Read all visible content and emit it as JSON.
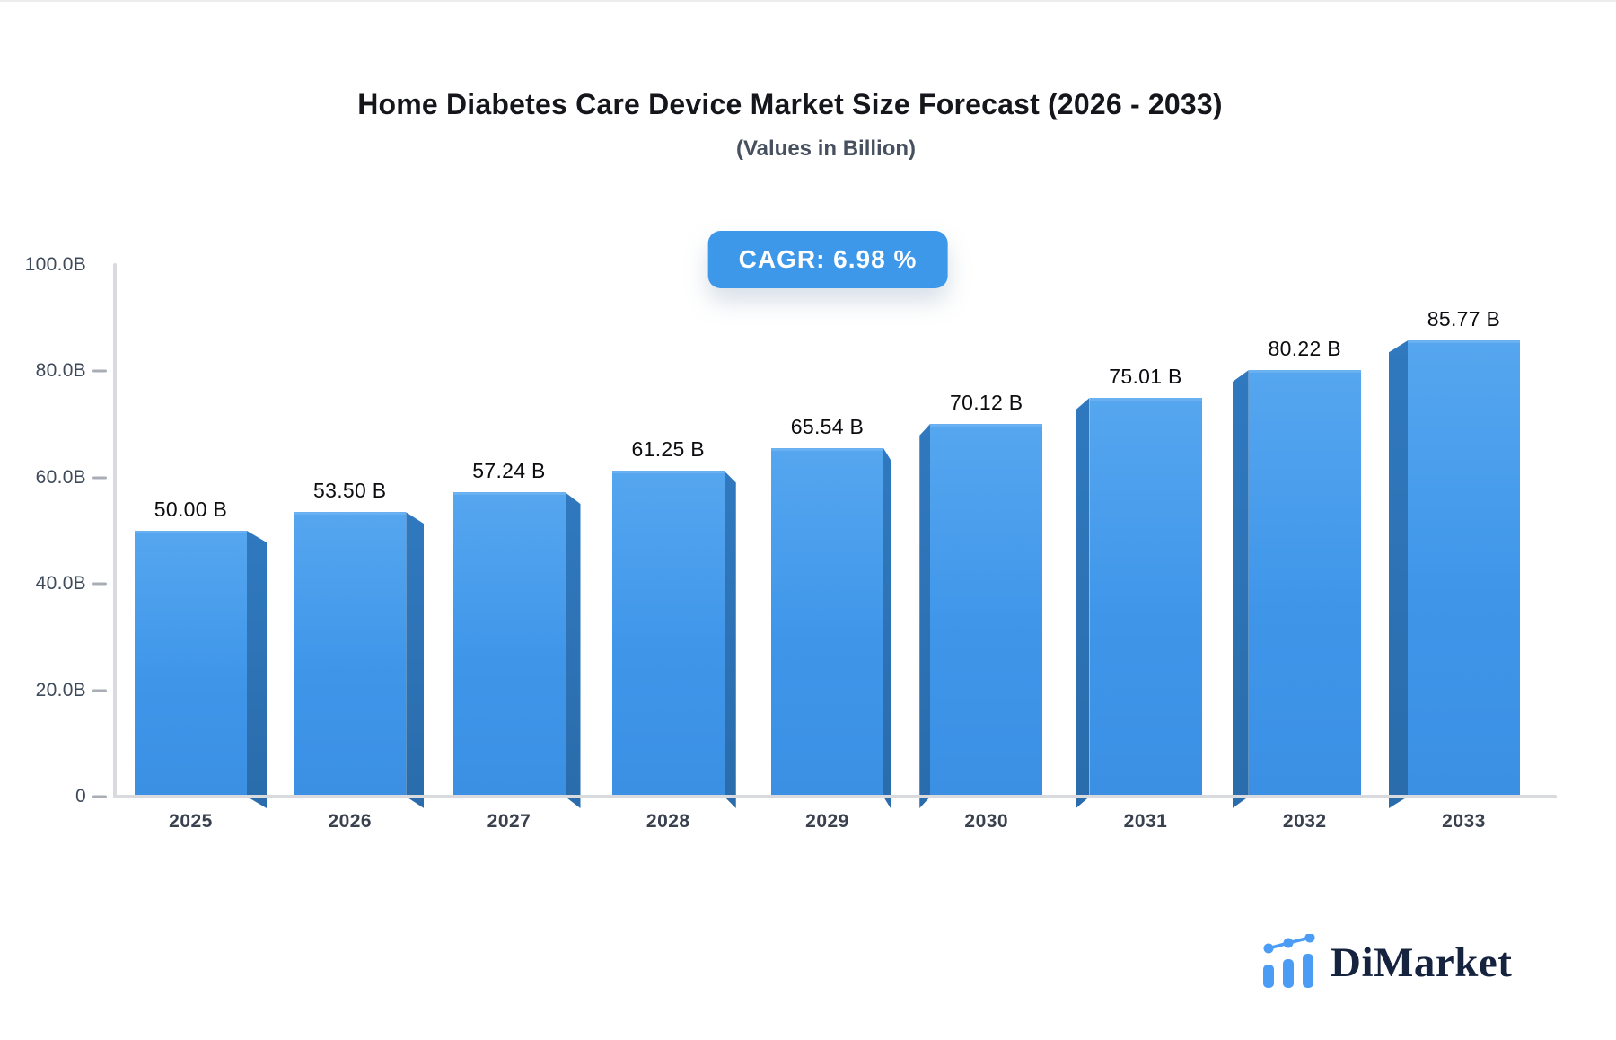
{
  "title": "Home Diabetes Care Device Market Size Forecast (2026 - 2033)",
  "subtitle": "(Values in Billion)",
  "badge": {
    "label": "CAGR: 6.98 %"
  },
  "logo": {
    "text": "DiMarket"
  },
  "chart_data": {
    "type": "bar",
    "title": "Home Diabetes Care Device Market Size Forecast (2026 - 2033)",
    "subtitle": "(Values in Billion)",
    "categories": [
      "2025",
      "2026",
      "2027",
      "2028",
      "2029",
      "2030",
      "2031",
      "2032",
      "2033"
    ],
    "values": [
      50.0,
      53.5,
      57.24,
      61.25,
      65.54,
      70.12,
      75.01,
      80.22,
      85.77
    ],
    "value_labels": [
      "50.00 B",
      "53.50 B",
      "57.24 B",
      "61.25 B",
      "65.54 B",
      "70.12 B",
      "75.01 B",
      "80.22 B",
      "85.77 B"
    ],
    "unit": "B",
    "cagr": "6.98 %",
    "xlabel": "",
    "ylabel": "",
    "y_axis": {
      "min": 0,
      "max": 100,
      "tick_values": [
        0,
        20,
        40,
        60,
        80,
        100
      ],
      "tick_labels": [
        "0",
        "20.0B",
        "40.0B",
        "60.0B",
        "80.0B",
        "100.0B"
      ]
    },
    "grid": false,
    "legend": false,
    "bar_color": "#3f96e9",
    "bar_side_color": "#2d74b8",
    "effect": "3d-perspective-center"
  }
}
